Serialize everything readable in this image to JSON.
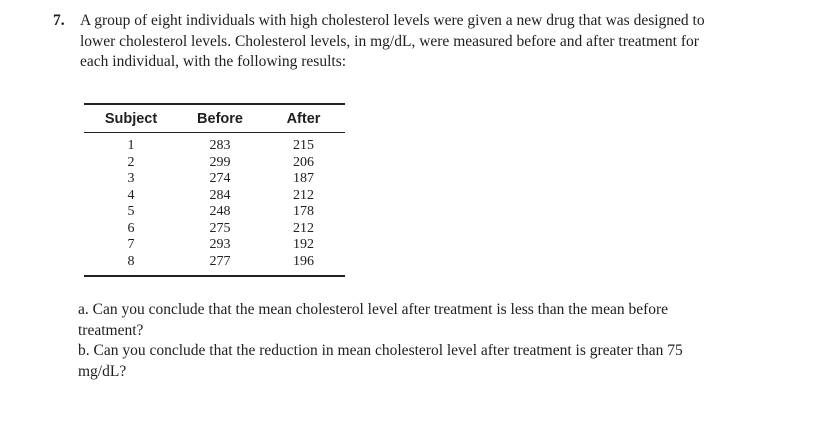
{
  "problem": {
    "number": "7.",
    "intro": "A group of eight individuals with high cholesterol levels were given a new drug that was designed to\nlower cholesterol levels. Cholesterol levels, in mg/dL, were measured before and after treatment for\neach individual, with the following results:"
  },
  "table": {
    "headers": [
      "Subject",
      "Before",
      "After"
    ],
    "rows": [
      [
        "1",
        "283",
        "215"
      ],
      [
        "2",
        "299",
        "206"
      ],
      [
        "3",
        "274",
        "187"
      ],
      [
        "4",
        "284",
        "212"
      ],
      [
        "5",
        "248",
        "178"
      ],
      [
        "6",
        "275",
        "212"
      ],
      [
        "7",
        "293",
        "192"
      ],
      [
        "8",
        "277",
        "196"
      ]
    ]
  },
  "questions": {
    "a": "a. Can you conclude that the mean cholesterol level after treatment is less than the mean before\ntreatment?",
    "b": "b. Can you conclude that the reduction in mean cholesterol level after treatment is greater than 75\nmg/dL?"
  },
  "colors": {
    "background": "#ffffff",
    "text": "#1e1e1e",
    "table_rule": "#222021"
  }
}
